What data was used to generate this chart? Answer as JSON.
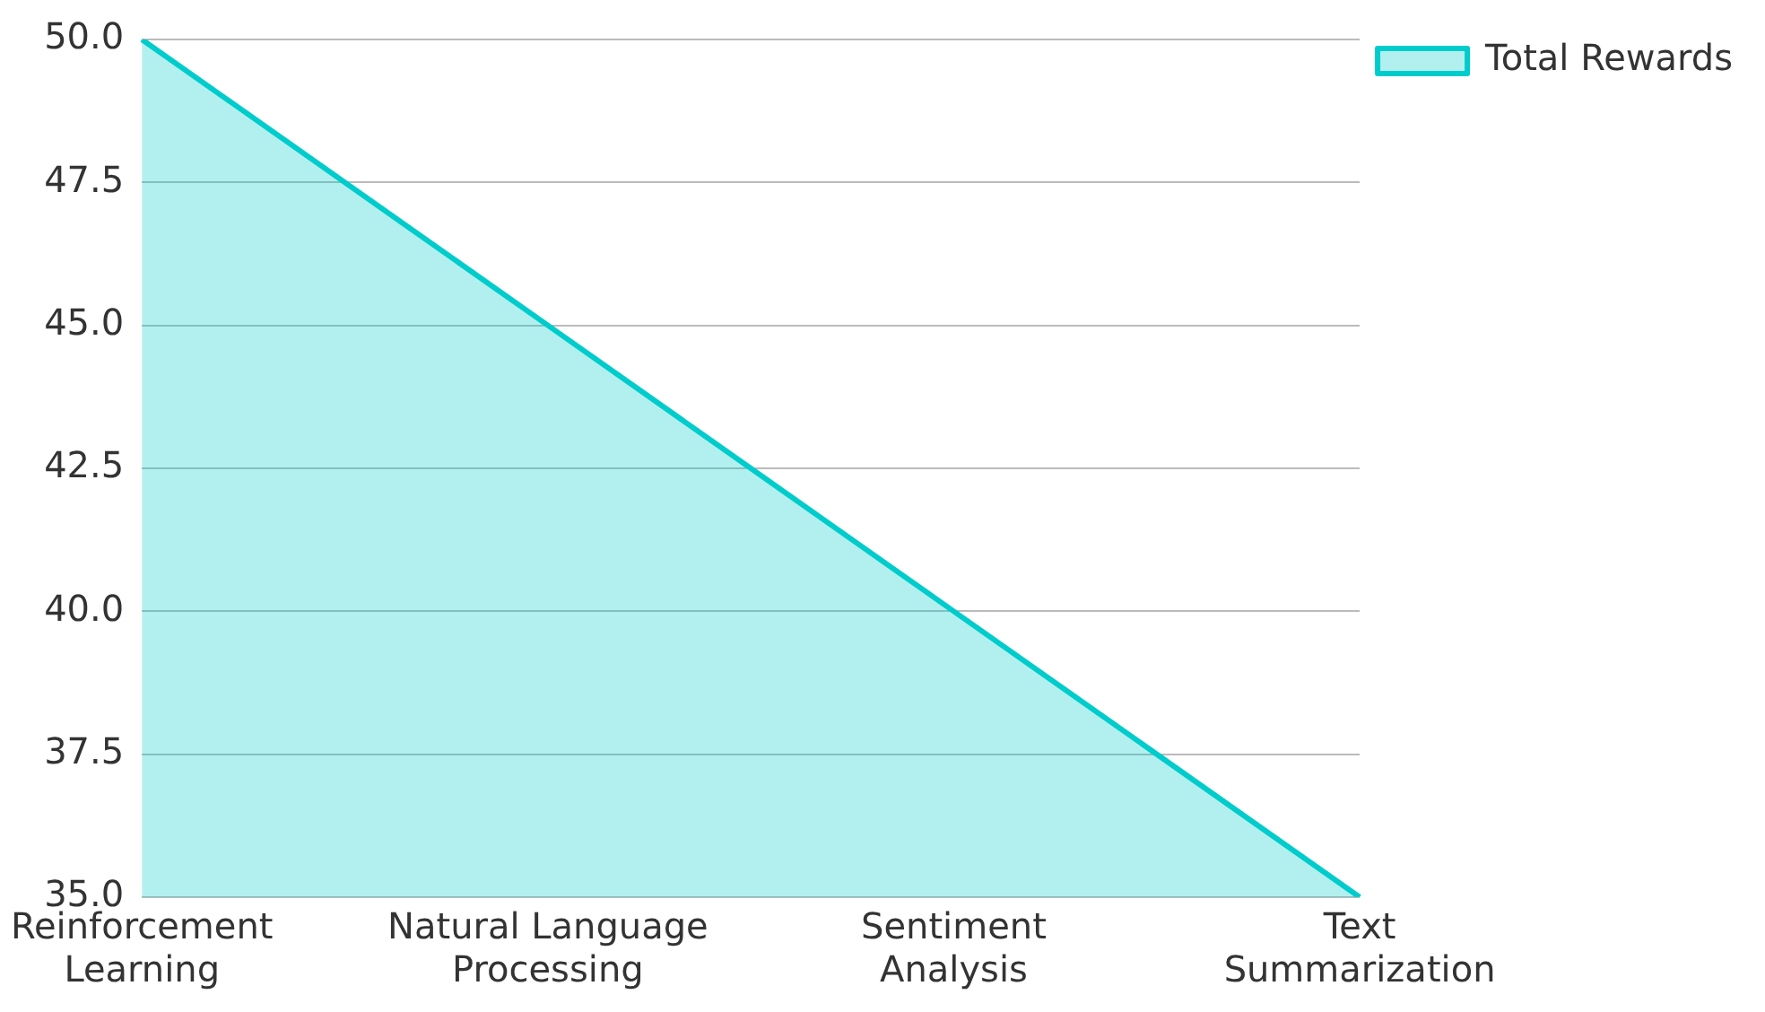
{
  "chart_data": {
    "type": "area",
    "categories": [
      "Reinforcement Learning",
      "Natural Language Processing",
      "Sentiment Analysis",
      "Text Summarization"
    ],
    "series": [
      {
        "name": "Total Rewards",
        "color": "#00cccc",
        "values": [
          50,
          45,
          40,
          35
        ]
      }
    ],
    "ylim": [
      35,
      50
    ],
    "yticks": [
      {
        "value": 35,
        "label": "35.0"
      },
      {
        "value": 37.5,
        "label": "37.5"
      },
      {
        "value": 40,
        "label": "40.0"
      },
      {
        "value": 42.5,
        "label": "42.5"
      },
      {
        "value": 45,
        "label": "45.0"
      },
      {
        "value": 47.5,
        "label": "47.5"
      },
      {
        "value": 50,
        "label": "50.0"
      }
    ],
    "grid": "y",
    "legend": "top right"
  }
}
